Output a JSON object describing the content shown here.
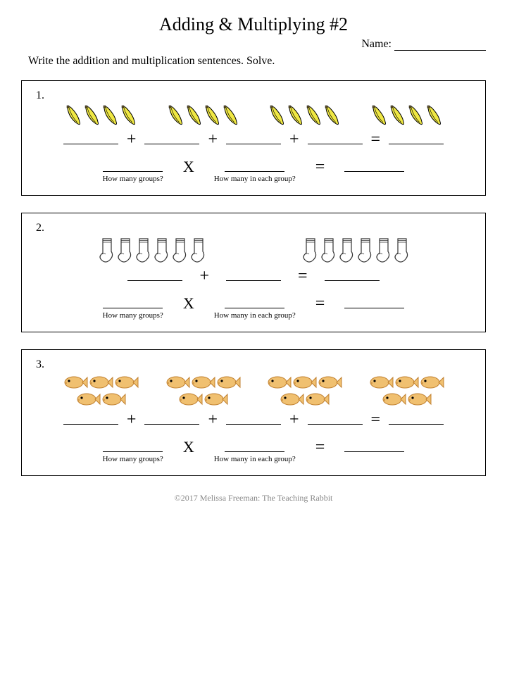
{
  "title": "Adding & Multiplying #2",
  "name_label": "Name:",
  "instructions": "Write the addition and multiplication sentences.  Solve.",
  "footer": "©2017 Melissa Freeman: The Teaching Rabbit",
  "hints": {
    "groups": "How many groups?",
    "each": "How many in each group?"
  },
  "ops": {
    "plus": "+",
    "times": "X",
    "equals": "="
  },
  "colors": {
    "banana_fill": "#f0e843",
    "banana_stroke": "#000000",
    "sock_fill": "#ffffff",
    "sock_stroke": "#333333",
    "fish_fill": "#f0c070",
    "fish_stroke": "#c08030"
  },
  "problems": [
    {
      "num": "1.",
      "icon": "banana",
      "groups": 4,
      "per_group": 4
    },
    {
      "num": "2.",
      "icon": "sock",
      "groups": 2,
      "per_group": 6
    },
    {
      "num": "3.",
      "icon": "fish",
      "groups": 4,
      "per_group": 5
    }
  ]
}
